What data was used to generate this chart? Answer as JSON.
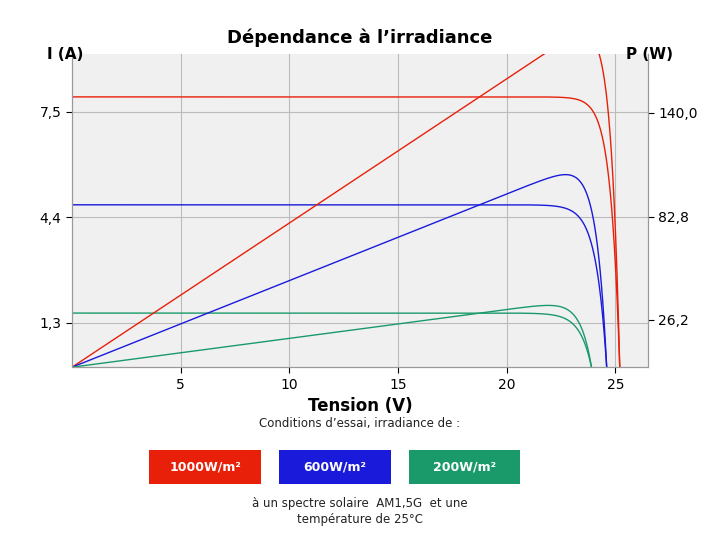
{
  "title": "Dépendance à l’irradiance",
  "xlabel": "Tension (V)",
  "ylabel_left": "I (A)",
  "ylabel_right": "P (W)",
  "xlim": [
    0,
    26.5
  ],
  "ylim_left": [
    0,
    9.2
  ],
  "ylim_right": [
    0,
    172.4
  ],
  "xticks": [
    5,
    10,
    15,
    20,
    25
  ],
  "yticks_left": [
    1.3,
    4.4,
    7.5
  ],
  "yticks_right": [
    26.2,
    82.8,
    140.0
  ],
  "colors": {
    "red": "#e8200a",
    "blue": "#1a1adb",
    "green": "#1a9a6a"
  },
  "background_color": "#ffffff",
  "plot_bg_color": "#f0f0f0",
  "grid_color": "#bbbbbb",
  "legend_items": [
    "1000W/m²",
    "600W/m²",
    "200W/m²"
  ],
  "legend_colors": [
    "#e8200a",
    "#1a1adb",
    "#1a9a6a"
  ],
  "note_line1": "Conditions d’essai, irradiance de :",
  "note_line2": "à un spectre solaire  AM1,5G  et une",
  "note_line3": "température de 25°C",
  "iv_1000_isc": 7.94,
  "iv_1000_voc": 25.2,
  "iv_600_isc": 4.77,
  "iv_600_voc": 24.6,
  "iv_200_isc": 1.59,
  "iv_200_voc": 23.9,
  "curves_n": [
    60,
    50,
    45
  ]
}
